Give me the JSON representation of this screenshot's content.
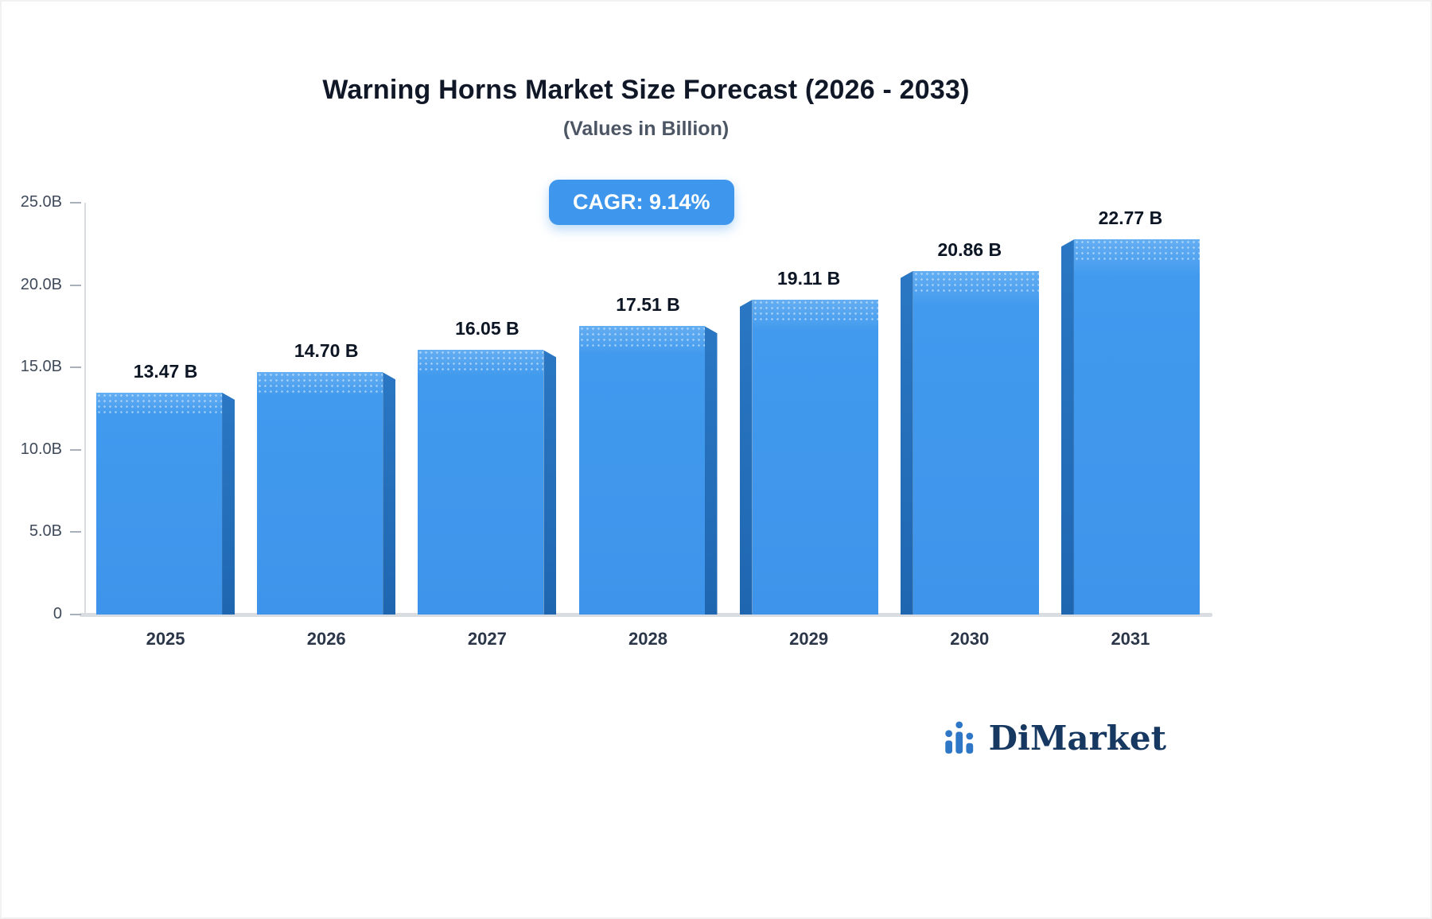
{
  "header": {
    "title": "Warning Horns Market Size Forecast (2026 - 2033)",
    "subtitle": "(Values in Billion)",
    "cagr_badge": "CAGR: 9.14%"
  },
  "brand": {
    "name": "DiMarket"
  },
  "chart_data": {
    "type": "bar",
    "categories": [
      "2025",
      "2026",
      "2027",
      "2028",
      "2029",
      "2030",
      "2031"
    ],
    "values": [
      13.47,
      14.7,
      16.05,
      17.51,
      19.11,
      20.86,
      22.77
    ],
    "value_labels": [
      "13.47 B",
      "14.70 B",
      "16.05 B",
      "17.51 B",
      "19.11 B",
      "20.86 B",
      "22.77 B"
    ],
    "title": "Warning Horns Market Size Forecast (2026 - 2033)",
    "subtitle": "(Values in Billion)",
    "annotation": "CAGR: 9.14%",
    "xlabel": "",
    "ylabel": "",
    "ylim": [
      0,
      25
    ],
    "ytick_labels": [
      "25.0B",
      "20.0B",
      "15.0B",
      "10.0B",
      "5.0B",
      "0"
    ],
    "ytick_values": [
      25,
      20,
      15,
      10,
      5,
      0
    ],
    "grid": false,
    "legend": "none",
    "colors": {
      "bar": "#3e97ec",
      "bar_side": "#1f66b0",
      "badge_bg": "#3e97ec",
      "badge_text": "#ffffff",
      "title_text": "#101828",
      "subtitle_text": "#4b5563",
      "axis": "#d9dde2",
      "brand_text": "#173860",
      "brand_icon": "#2e77c6"
    }
  }
}
